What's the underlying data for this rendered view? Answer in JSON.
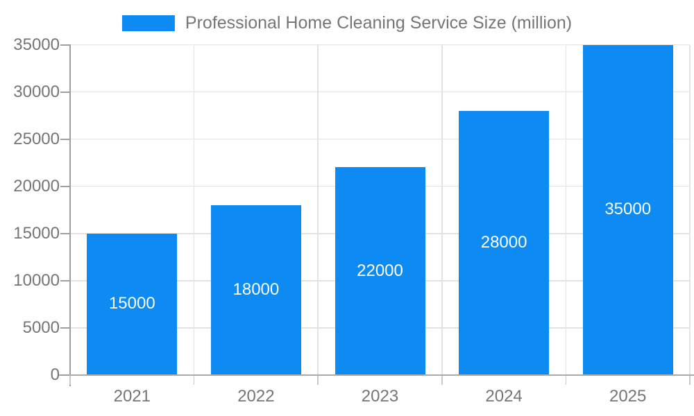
{
  "chart_data": {
    "type": "bar",
    "title": "Professional Home Cleaning Service Size (million)",
    "legend": {
      "position": "top-center",
      "items": [
        {
          "label": "Professional Home Cleaning Service Size (million)",
          "swatch_color": "#0D8BF2"
        }
      ]
    },
    "categories": [
      "2021",
      "2022",
      "2023",
      "2024",
      "2025"
    ],
    "values": [
      15000,
      18000,
      22000,
      28000,
      35000
    ],
    "series": [
      {
        "name": "Professional Home Cleaning Service Size (million)",
        "values": [
          15000,
          18000,
          22000,
          28000,
          35000
        ]
      }
    ],
    "xlabel": "",
    "ylabel": "",
    "ylim": [
      0,
      35000
    ],
    "ytick_interval": 5000,
    "ytick_labels": [
      "0",
      "5000",
      "10000",
      "15000",
      "20000",
      "25000",
      "30000",
      "35000"
    ],
    "grid": true,
    "value_labels_inside_bars": true,
    "colors": {
      "bar": "#0D8BF2",
      "value_label": "#FFFFFF",
      "axis_text": "#757575",
      "grid_line": "#E3E3E3",
      "axis_line": "#9E9E9E",
      "boundary_tick": "#C9C9C9",
      "background": "#FFFFFF"
    }
  }
}
